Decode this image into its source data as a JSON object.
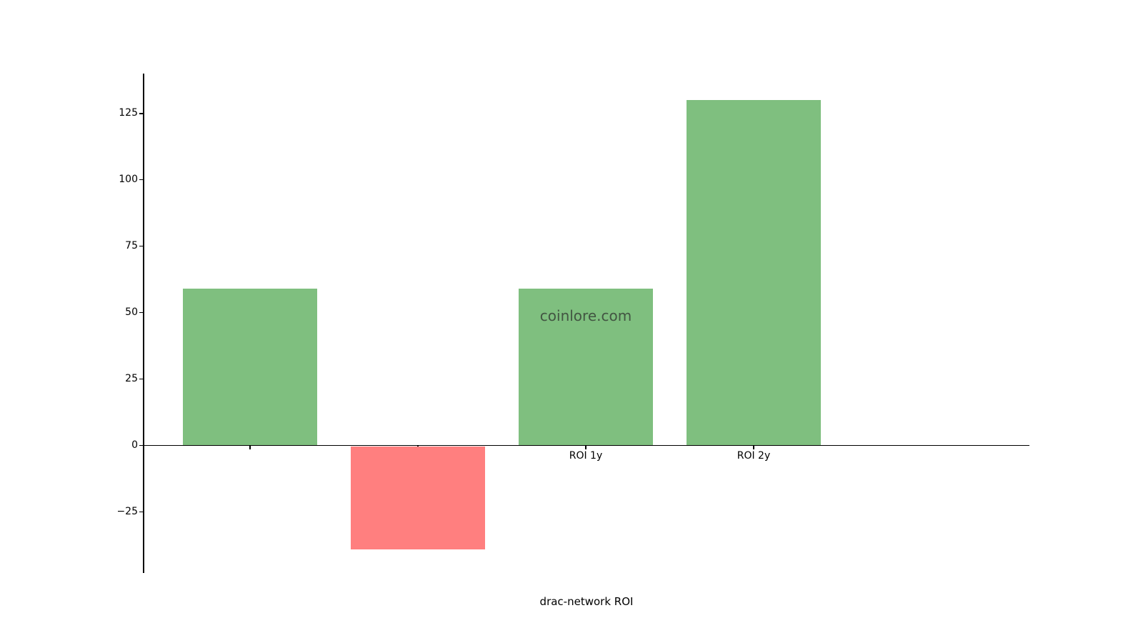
{
  "styles": {
    "background": "#ffffff",
    "axis_color": "#000000",
    "text_color": "#000000",
    "watermark_color": "rgba(40,40,40,0.7)",
    "positive_color": "#7fbf7f",
    "negative_color": "#ff7f7f"
  },
  "chart_data": {
    "type": "bar",
    "categories": [
      "",
      "",
      "ROI 1y",
      "ROI 2y"
    ],
    "values": [
      59,
      -39,
      59,
      130
    ],
    "bar_colors": [
      "#7fbf7f",
      "#ff7f7f",
      "#7fbf7f",
      "#7fbf7f"
    ],
    "title": "drac-network ROI",
    "xlabel": "drac-network ROI",
    "ylabel": "",
    "watermark": "coinlore.com",
    "y_ticks": [
      125,
      100,
      75,
      50,
      25,
      0,
      -25
    ],
    "y_tick_labels": [
      "125",
      "100",
      "75",
      "50",
      "25",
      "0",
      "−25"
    ],
    "ylim": [
      -48,
      140
    ],
    "grid": false,
    "legend_position": "none",
    "units": "percent"
  }
}
